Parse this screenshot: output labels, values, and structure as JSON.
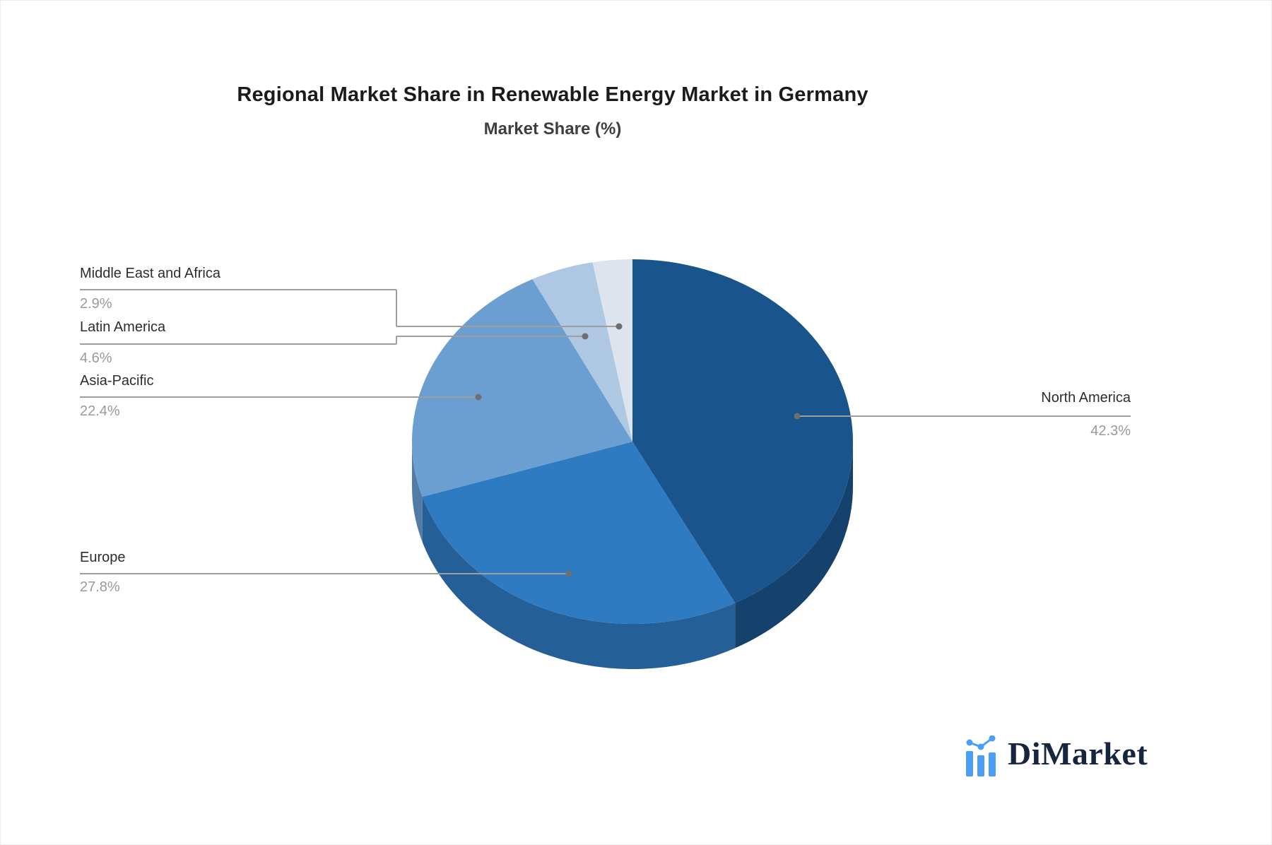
{
  "title": "Regional Market Share in Renewable Energy Market in Germany",
  "subtitle": "Market Share (%)",
  "brand": {
    "name": "DiMarket"
  },
  "chart_data": {
    "type": "pie",
    "title": "Regional Market Share in Renewable Energy Market in Germany",
    "subtitle": "Market Share (%)",
    "unit": "%",
    "start_angle_deg": 0,
    "direction": "clockwise",
    "effect_3d": true,
    "legend_position": "connector-labels",
    "slices": [
      {
        "label": "North America",
        "value": 42.3,
        "display": "42.3%",
        "color": "#19548c"
      },
      {
        "label": "Europe",
        "value": 27.8,
        "display": "27.8%",
        "color": "#2e7bc1"
      },
      {
        "label": "Asia-Pacific",
        "value": 22.4,
        "display": "22.4%",
        "color": "#6b9fd2"
      },
      {
        "label": "Latin America",
        "value": 4.6,
        "display": "4.6%",
        "color": "#aec8e3"
      },
      {
        "label": "Middle East and Africa",
        "value": 2.9,
        "display": "2.9%",
        "color": "#dde4ee"
      }
    ],
    "connector_color": "#9e9e9e",
    "connector_dot_color": "#6e6e6e"
  }
}
